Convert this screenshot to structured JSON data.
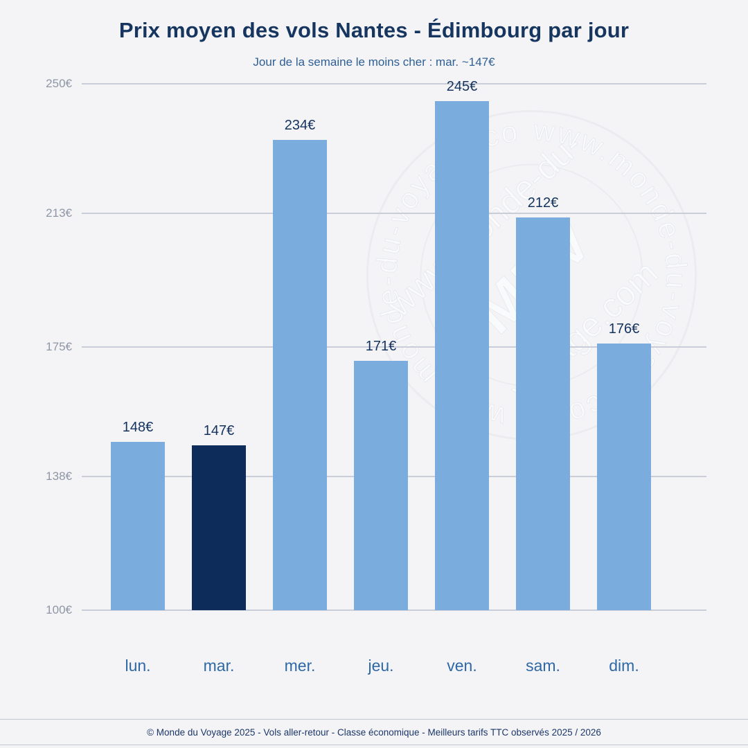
{
  "colors": {
    "background": "#f4f4f6",
    "bar": "#7aadde",
    "bar_highlight": "#0e2c5a",
    "title_text": "#16355f",
    "subtitle_text": "#2e5f94",
    "value_label_text": "#13325e",
    "day_label_text": "#2e68a6",
    "axis_tick_text": "#8e96a6",
    "gridline": "#c9cdd8"
  },
  "watermark": {
    "ring_text": "www.monde-du-voyage.com · www.monde-du-voyage.com ·",
    "line1": "www.monde-du-",
    "center_text": "MDV",
    "line2": "voyage.com"
  },
  "footer": {
    "text": "© Monde du Voyage 2025 - Vols aller-retour - Classe économique - Meilleurs tarifs TTC observés 2025 / 2026"
  },
  "chart_data": {
    "type": "bar",
    "title": "Prix moyen des vols Nantes - Édimbourg par jour",
    "subtitle": "Jour de la semaine le moins cher : mar. ~147€",
    "categories": [
      "lun.",
      "mar.",
      "mer.",
      "jeu.",
      "ven.",
      "sam.",
      "dim."
    ],
    "values": [
      148,
      147,
      234,
      171,
      245,
      212,
      176
    ],
    "value_labels": [
      "148€",
      "147€",
      "234€",
      "171€",
      "245€",
      "212€",
      "176€"
    ],
    "highlight_index": 1,
    "highlight_reason": "cheapest day",
    "yticks": [
      250,
      213,
      175,
      138,
      100
    ],
    "ytick_labels": [
      "250€",
      "213€",
      "175€",
      "138€",
      "100€"
    ],
    "ylim": [
      100,
      250
    ],
    "xlabel": "",
    "ylabel": "",
    "grid": true,
    "legend": false
  }
}
